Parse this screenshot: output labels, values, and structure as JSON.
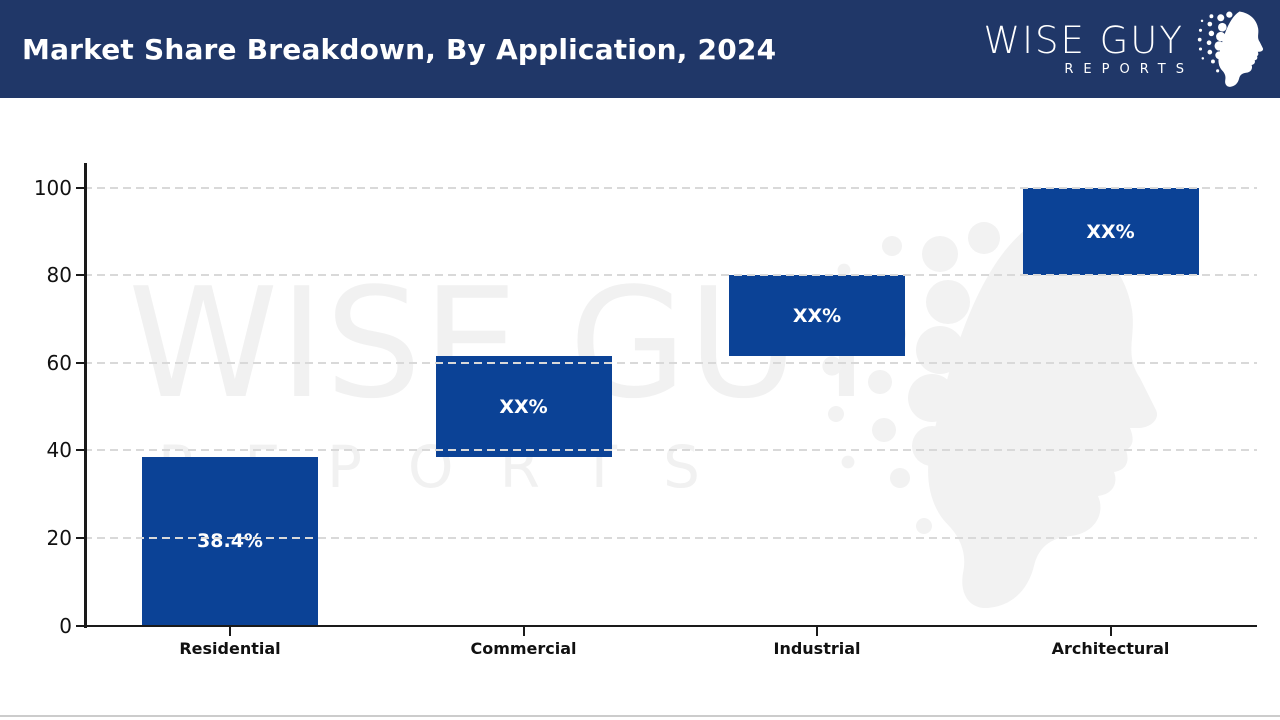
{
  "header": {
    "title": "Market Share Breakdown, By Application, 2024",
    "logo": {
      "line1": "WISE GUY",
      "line2": "REPORTS",
      "icon": "dotted-head-profile-icon"
    }
  },
  "watermark": {
    "line1": "WISE GUY",
    "line2": "REPORTS",
    "icon": "dotted-head-profile-icon"
  },
  "colors": {
    "header_bg": "#203768",
    "bar": "#0b4296",
    "gridline": "#d9d9d9",
    "axis": "#1a1a1a",
    "watermark": "#f1f1f1",
    "bar_label": "#ffffff",
    "title_text": "#ffffff"
  },
  "chart_data": {
    "type": "bar",
    "subtype": "waterfall",
    "title": "Market Share Breakdown, By Application, 2024",
    "categories": [
      "Residential",
      "Commercial",
      "Industrial",
      "Architectural"
    ],
    "segments": [
      {
        "category": "Residential",
        "start": 0,
        "end": 38.4,
        "label": "38.4%"
      },
      {
        "category": "Commercial",
        "start": 38.4,
        "end": 61.5,
        "label": "XX%"
      },
      {
        "category": "Industrial",
        "start": 61.5,
        "end": 80,
        "label": "XX%"
      },
      {
        "category": "Architectural",
        "start": 80,
        "end": 100,
        "label": "XX%"
      }
    ],
    "xlabel": "",
    "ylabel": "",
    "yticks": [
      0,
      20,
      40,
      60,
      80,
      100
    ],
    "ylim": [
      0,
      105
    ],
    "grid": true,
    "grid_style": "dashed",
    "legend": "none",
    "bar_color": "#0b4296"
  }
}
